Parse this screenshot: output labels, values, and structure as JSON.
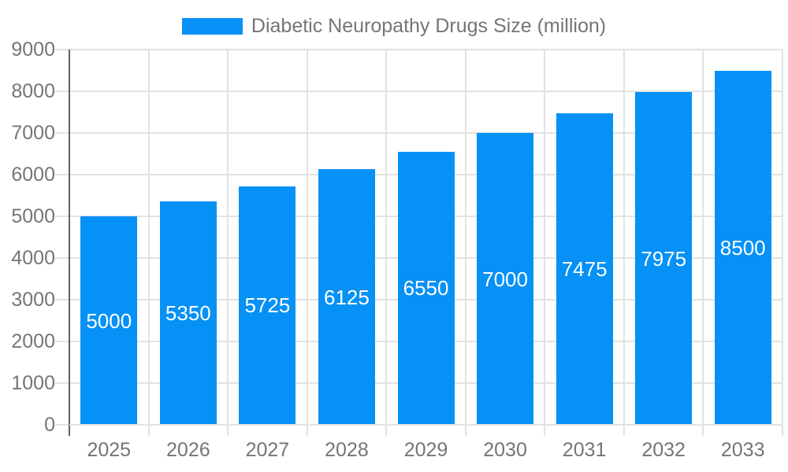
{
  "chart_data": {
    "type": "bar",
    "title": "Diabetic Neuropathy Drugs Size (million)",
    "legend": [
      "Diabetic Neuropathy Drugs Size (million)"
    ],
    "legend_position": "top-center",
    "categories": [
      "2025",
      "2026",
      "2027",
      "2028",
      "2029",
      "2030",
      "2031",
      "2032",
      "2033"
    ],
    "values": [
      5000,
      5350,
      5725,
      6125,
      6550,
      7000,
      7475,
      7975,
      8500
    ],
    "value_label_position": "inside-center",
    "xlabel": "",
    "ylabel": "",
    "ylim": [
      0,
      9000
    ],
    "y_tick_step": 1000,
    "y_ticks": [
      "0",
      "1000",
      "2000",
      "3000",
      "4000",
      "5000",
      "6000",
      "7000",
      "8000",
      "9000"
    ],
    "grid": true
  },
  "colors": {
    "bar": "#0591F6",
    "grid": "#E2E2E2",
    "axis": "#616161",
    "label_text": "#757575",
    "bar_label_text": "#FFFFFF",
    "background": "#FFFFFF"
  }
}
